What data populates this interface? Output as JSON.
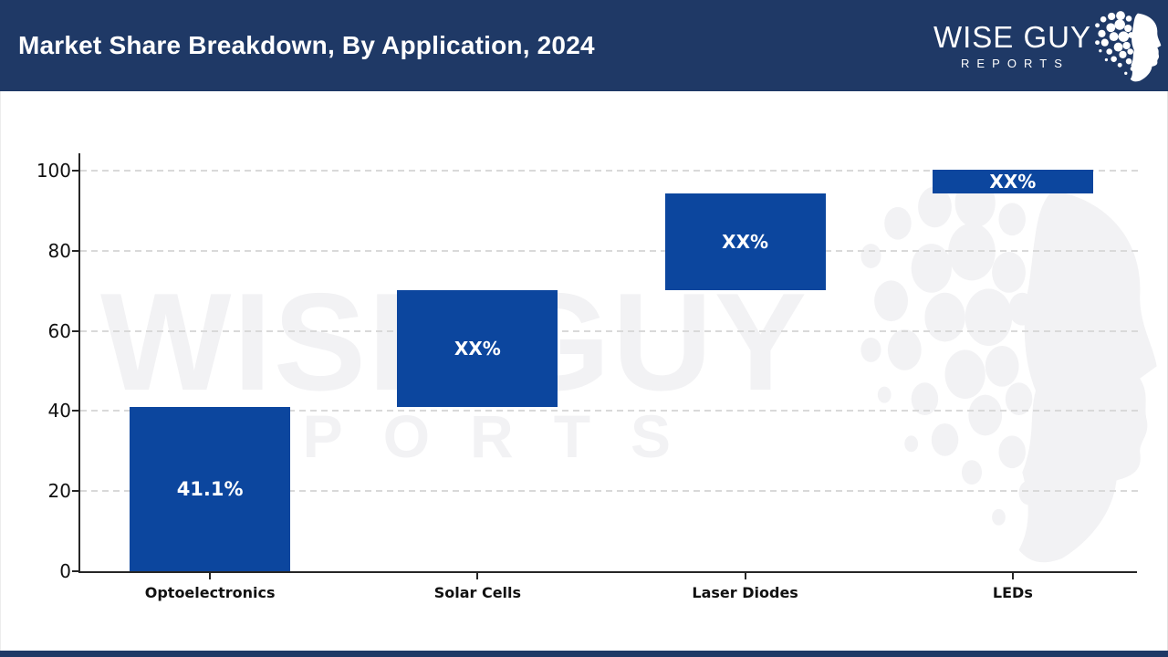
{
  "header": {
    "title": "Market Share Breakdown, By Application, 2024",
    "brand": {
      "name": "WISE GUY",
      "tagline": "REPORTS"
    },
    "colors": {
      "background": "#1f3966",
      "text": "#ffffff"
    }
  },
  "watermark": {
    "wordmark": "WISE GUY",
    "tagline": "REPORTS"
  },
  "chart_data": {
    "type": "bar",
    "subtype": "waterfall",
    "title": "Market Share Breakdown, By Application, 2024",
    "categories": [
      "Optoelectronics",
      "Solar Cells",
      "Laser Diodes",
      "LEDs"
    ],
    "series": [
      {
        "name": "Market share (%)",
        "segments": [
          {
            "category": "Optoelectronics",
            "base": 0,
            "top": 41.1,
            "label": "41.1%"
          },
          {
            "category": "Solar Cells",
            "base": 41.1,
            "top": 70.2,
            "label": "XX%"
          },
          {
            "category": "Laser Diodes",
            "base": 70.2,
            "top": 94.3,
            "label": "XX%"
          },
          {
            "category": "LEDs",
            "base": 94.3,
            "top": 100.2,
            "label": "XX%"
          }
        ]
      }
    ],
    "xlabel": "",
    "ylabel": "",
    "ylim": [
      0,
      105
    ],
    "yticks": [
      0,
      20,
      40,
      60,
      80,
      100
    ],
    "grid": "horizontal-dashed",
    "legend": "none",
    "bar_color": "#0c469e",
    "bar_label_color": "#ffffff",
    "axis_color": "#262626",
    "gridline_color": "#d9d9d9"
  },
  "footer": {
    "bar_color": "#1f3966"
  }
}
